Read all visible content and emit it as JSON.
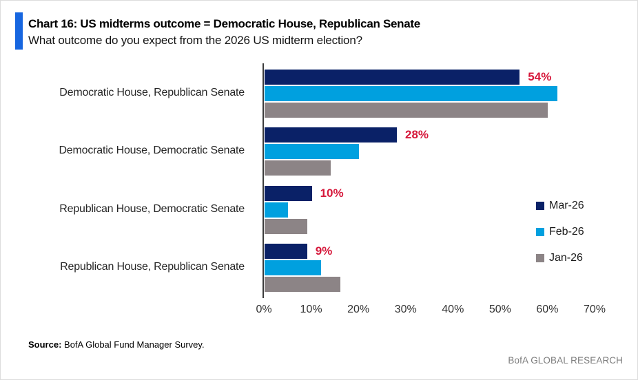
{
  "header": {
    "title": "Chart 16: US midterms outcome = Democratic House, Republican Senate",
    "subtitle": "What outcome do you expect from the 2026 US midterm election?",
    "accent_color": "#1766E0"
  },
  "chart_data": {
    "type": "bar",
    "orientation": "horizontal",
    "title": "Chart 16: US midterms outcome = Democratic House, Republican Senate",
    "subtitle": "What outcome do you expect from the 2026 US midterm election?",
    "categories": [
      "Democratic House, Republican Senate",
      "Democratic House, Democratic Senate",
      "Republican House, Democratic Senate",
      "Republican House, Republican Senate"
    ],
    "series": [
      {
        "name": "Mar-26",
        "color": "#0A2167",
        "values": [
          54,
          28,
          10,
          9
        ],
        "labels": [
          "54%",
          "28%",
          "10%",
          "9%"
        ]
      },
      {
        "name": "Feb-26",
        "color": "#00A0DF",
        "values": [
          62,
          20,
          5,
          12
        ],
        "labels": null
      },
      {
        "name": "Jan-26",
        "color": "#8C8486",
        "values": [
          60,
          14,
          9,
          16
        ],
        "labels": null
      }
    ],
    "xlim": [
      0,
      70
    ],
    "x_ticks": [
      "0%",
      "10%",
      "20%",
      "30%",
      "40%",
      "50%",
      "60%",
      "70%"
    ],
    "grid": false,
    "legend_position": "right",
    "value_label_color": "#D6173A",
    "axis_line_color": "#3C3C3C"
  },
  "footer": {
    "source_label": "Source:",
    "source_text": " BofA Global Fund Manager Survey.",
    "brand": "BofA GLOBAL RESEARCH"
  }
}
